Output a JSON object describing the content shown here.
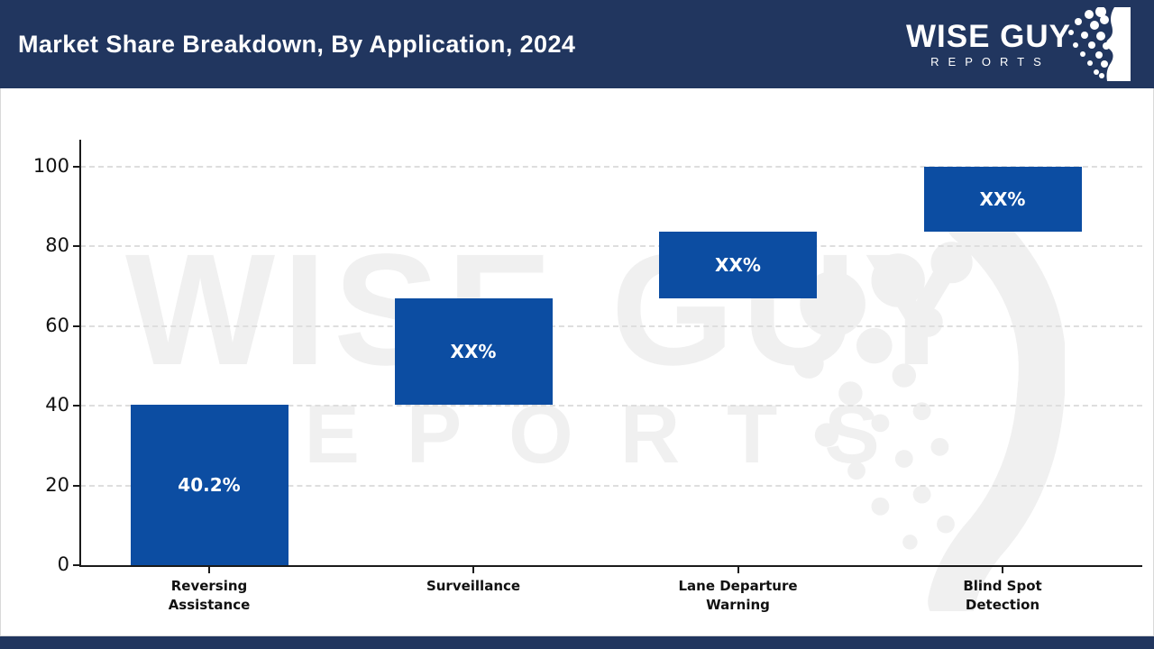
{
  "header": {
    "title": "Market Share Breakdown, By Application, 2024",
    "logo_line1": "WISE GUY",
    "logo_line2": "REPORTS"
  },
  "watermark": {
    "line1": "WISE GUY",
    "line2": "REPORTS"
  },
  "colors": {
    "header_bg": "#21365f",
    "footer_bg": "#21365f",
    "bar": "#0c4da2",
    "bar_label": "#ffffff",
    "grid": "#dedede",
    "axis": "#1a1a1a",
    "watermark": "#f0f0f0"
  },
  "chart_data": {
    "type": "bar",
    "subtype": "waterfall",
    "title": "Market Share Breakdown, By Application, 2024",
    "xlabel": "",
    "ylabel": "",
    "ylim": [
      0,
      107
    ],
    "yticks": [
      0,
      20,
      40,
      60,
      80,
      100
    ],
    "grid": true,
    "categories": [
      [
        "Reversing",
        "Assistance"
      ],
      [
        "Surveillance"
      ],
      [
        "Lane Departure",
        "Warning"
      ],
      [
        "Blind Spot",
        "Detection"
      ]
    ],
    "segments": [
      {
        "category": "Reversing Assistance",
        "start": 0,
        "end": 40.2,
        "value": 40.2,
        "data_label": "40.2%"
      },
      {
        "category": "Surveillance",
        "start": 40.2,
        "end": 67.0,
        "value": 26.8,
        "data_label": "XX%"
      },
      {
        "category": "Lane Departure Warning",
        "start": 67.0,
        "end": 83.6,
        "value": 16.6,
        "data_label": "XX%"
      },
      {
        "category": "Blind Spot Detection",
        "start": 83.6,
        "end": 100,
        "value": 16.4,
        "data_label": "XX%"
      }
    ]
  }
}
